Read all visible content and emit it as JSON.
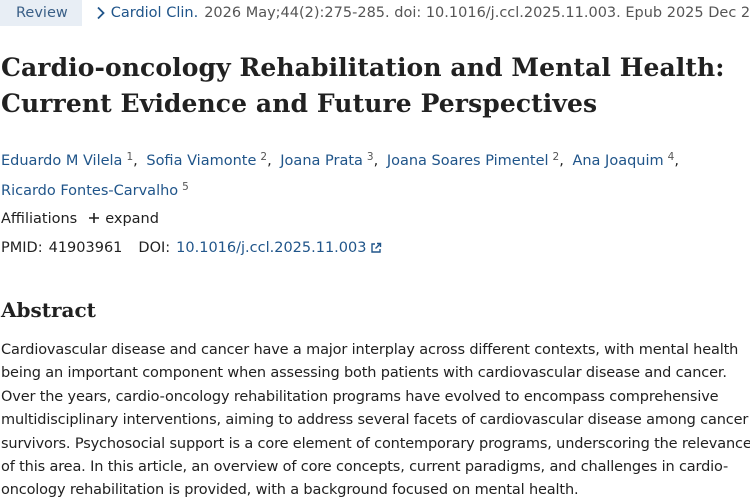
{
  "header": {
    "badge": "Review",
    "journal": "Cardiol Clin.",
    "citation": "2026 May;44(2):275-285. doi: 10.1016/j.ccl.2025.11.003. Epub 2025 Dec 23."
  },
  "article": {
    "title": "Cardio-oncology Rehabilitation and Mental Health: Current Evidence and Future Perspectives",
    "authors": [
      {
        "name": "Eduardo M Vilela",
        "aff": "1"
      },
      {
        "name": "Sofia Viamonte",
        "aff": "2"
      },
      {
        "name": "Joana Prata",
        "aff": "3"
      },
      {
        "name": "Joana Soares Pimentel",
        "aff": "2"
      },
      {
        "name": "Ana Joaquim",
        "aff": "4"
      },
      {
        "name": "Ricardo Fontes-Carvalho",
        "aff": "5"
      }
    ],
    "author_separator": ",",
    "affiliations_label": "Affiliations",
    "expand_label": "expand",
    "pmid_label": "PMID:",
    "pmid": "41903961",
    "doi_label": "DOI:",
    "doi": "10.1016/j.ccl.2025.11.003"
  },
  "abstract": {
    "heading": "Abstract",
    "text": "Cardiovascular disease and cancer have a major interplay across different contexts, with mental health being an important component when assessing both patients with cardiovascular disease and cancer. Over the years, cardio-oncology rehabilitation programs have evolved to encompass comprehensive multidisciplinary interventions, aiming to address several facets of cardiovascular disease among cancer survivors. Psychosocial support is a core element of contemporary programs, underscoring the relevance of this area. In this article, an overview of core concepts, current paradigms, and challenges in cardio-oncology rehabilitation is provided, with a background focused on mental health."
  },
  "icons": {
    "breadcrumb": "chevron-right-icon",
    "expand": "plus-icon",
    "external": "external-link-icon"
  },
  "colors": {
    "link": "#20558a",
    "badge_bg": "#e8eef5",
    "text": "#212121"
  }
}
